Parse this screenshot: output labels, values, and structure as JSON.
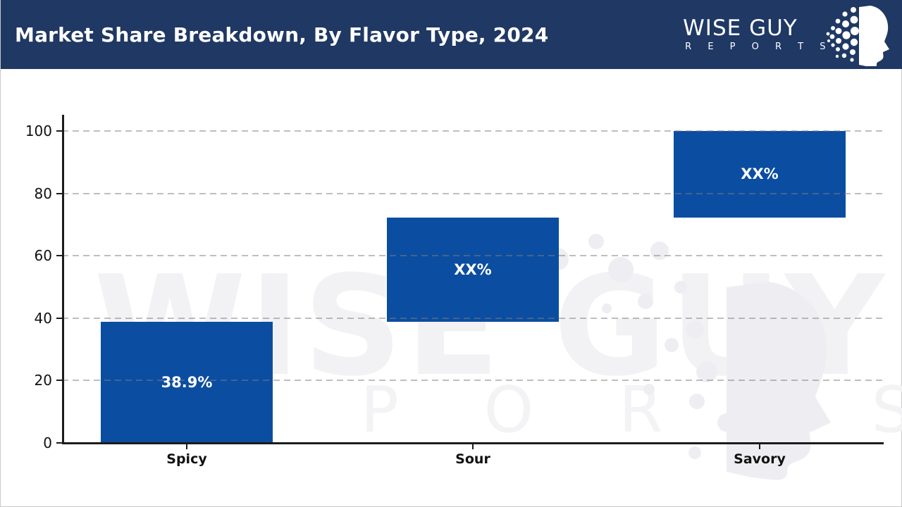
{
  "header": {
    "title": "Market Share Breakdown, By Flavor Type, 2024",
    "bg_color": "#1f3864",
    "logo": {
      "wordmark": "WISE GUY",
      "reports": "R E P O R T S"
    }
  },
  "watermark": {
    "line1": "WISE GUY",
    "line2": "REPORTS"
  },
  "chart_data": {
    "type": "bar",
    "subtype": "waterfall",
    "title": "Market Share Breakdown, By Flavor Type, 2024",
    "categories": [
      "Spicy",
      "Sour",
      "Savory"
    ],
    "segments": [
      {
        "category": "Spicy",
        "start": 0,
        "end": 38.9,
        "label": "38.9%"
      },
      {
        "category": "Sour",
        "start": 38.9,
        "end": 72.3,
        "label": "XX%"
      },
      {
        "category": "Savory",
        "start": 72.3,
        "end": 100,
        "label": "XX%"
      }
    ],
    "ylim": [
      0,
      100
    ],
    "yticks": [
      0,
      20,
      40,
      60,
      80,
      100
    ],
    "xlabel": "",
    "ylabel": "",
    "grid": "horizontal-dashed",
    "grid_above_bars": true,
    "legend": "none",
    "bar_color": "#0b4da1",
    "value_label_color": "#ffffff",
    "axis_color": "#1c1c1c"
  }
}
